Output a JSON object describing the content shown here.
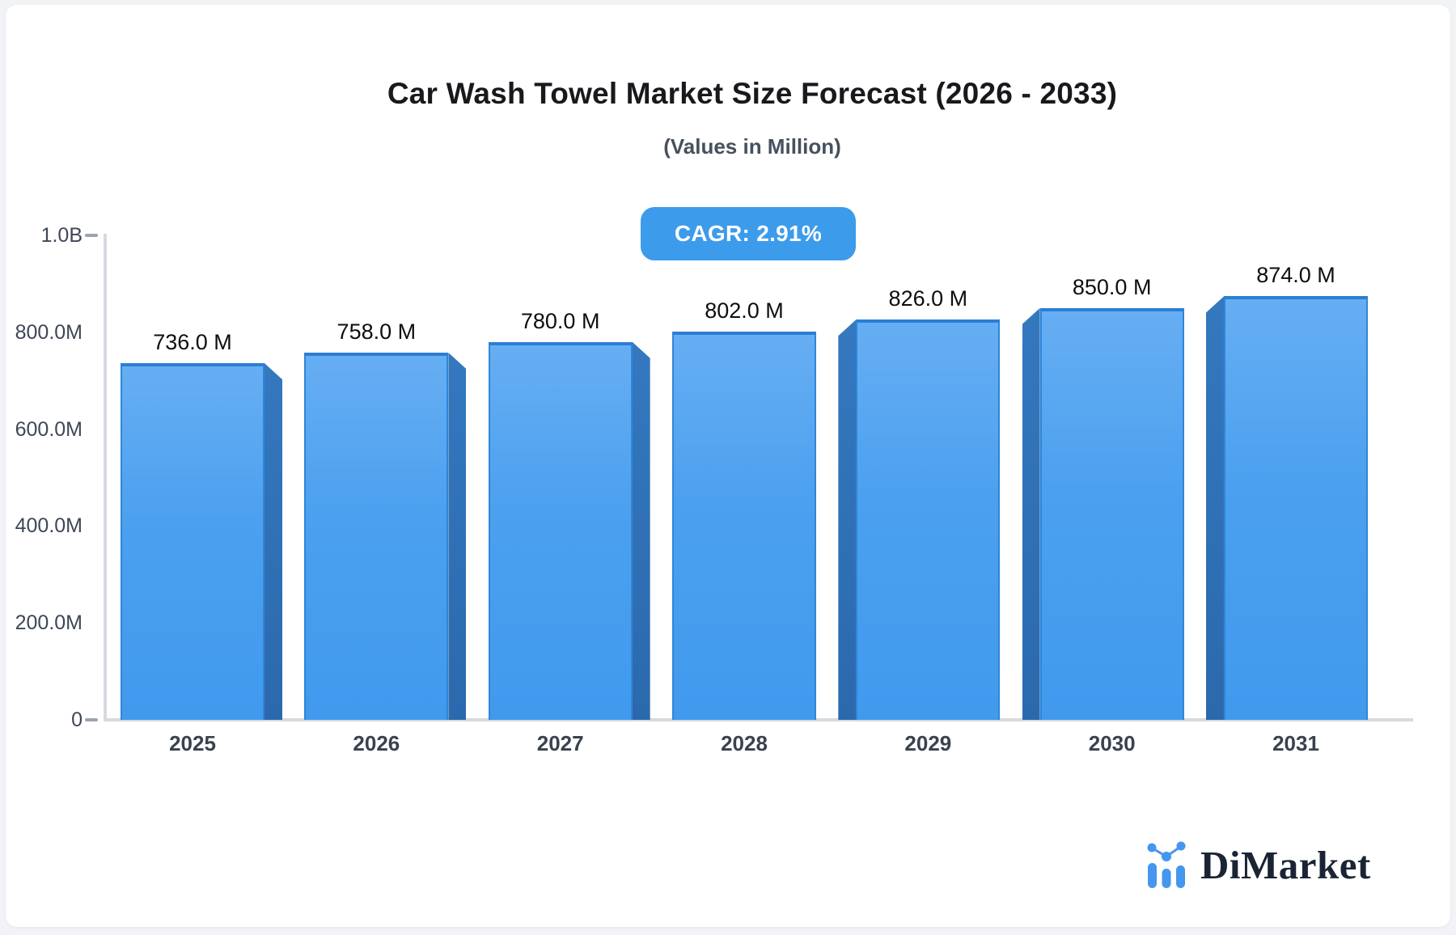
{
  "header": {
    "title": "Car Wash Towel Market Size Forecast (2026 - 2033)",
    "subtitle": "(Values in Million)",
    "cagr_badge": "CAGR: 2.91%"
  },
  "chart_data": {
    "type": "bar",
    "title": "Car Wash Towel Market Size Forecast (2026 - 2033)",
    "subtitle": "(Values in Million)",
    "cagr_percent": 2.91,
    "categories": [
      "2025",
      "2026",
      "2027",
      "2028",
      "2029",
      "2030",
      "2031"
    ],
    "values": [
      736.0,
      758.0,
      780.0,
      802.0,
      826.0,
      850.0,
      874.0
    ],
    "value_labels": [
      "736.0 M",
      "758.0 M",
      "780.0 M",
      "802.0 M",
      "826.0 M",
      "850.0 M",
      "874.0 M"
    ],
    "unit": "Million",
    "xlabel": "",
    "ylabel": "",
    "ylim": [
      0,
      1000
    ],
    "y_ticks": [
      "1.0B",
      "800.0M",
      "600.0M",
      "400.0M",
      "200.0M",
      "0"
    ],
    "grid": false,
    "legend": false,
    "style_3d": true,
    "colors": {
      "bar_face": "#4BA0EF",
      "bar_side": "#2F70B5",
      "badge_background": "#3D9BEB",
      "axis_line": "#D6D9DF",
      "tick_mark": "#9CA3AE"
    }
  },
  "footer": {
    "logo_text": "DiMarket",
    "logo_icon": "bar-chart-logo-icon",
    "logo_text_color": "#1B2435",
    "logo_icon_color": "#4596EF"
  }
}
